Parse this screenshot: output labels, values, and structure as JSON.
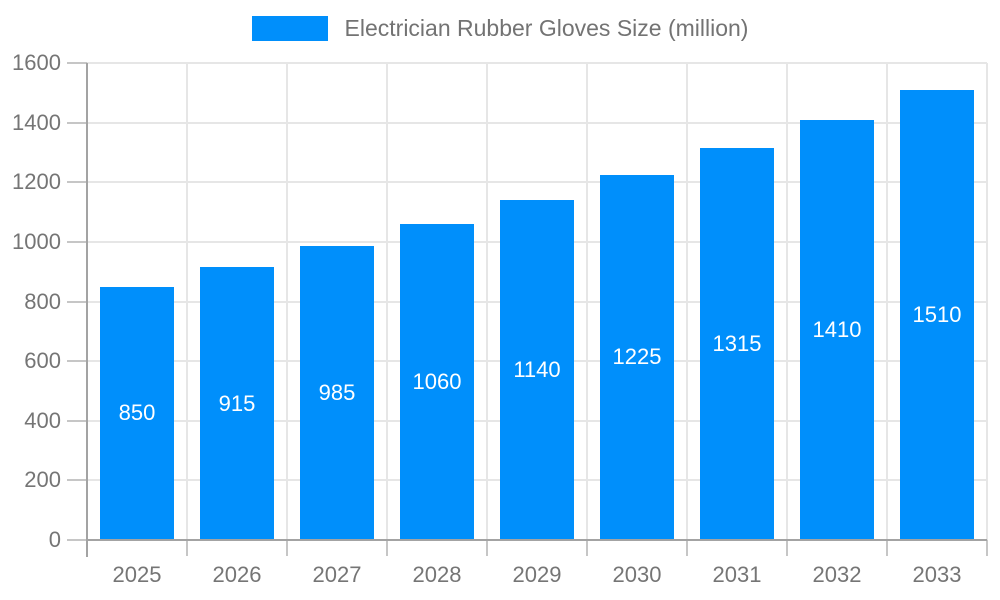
{
  "chart_data": {
    "type": "bar",
    "legend": "Electrician Rubber Gloves Size (million)",
    "legend_position": "top",
    "categories": [
      "2025",
      "2026",
      "2027",
      "2028",
      "2029",
      "2030",
      "2031",
      "2032",
      "2033"
    ],
    "values": [
      850,
      915,
      985,
      1060,
      1140,
      1225,
      1315,
      1410,
      1510
    ],
    "ylim": [
      0,
      1600
    ],
    "ytick_step": 200,
    "ytick_labels": [
      "0",
      "200",
      "400",
      "600",
      "800",
      "1000",
      "1200",
      "1400",
      "1600"
    ],
    "grid": true,
    "colors": {
      "bar": "#008FFB",
      "bar_label": "#ffffff",
      "axis_label": "#757575",
      "legend_text": "#737373",
      "grid_line": "#e6e6e6",
      "axis_line": "#a3a3a3",
      "tick_mark": "#c6c6c6",
      "background": "#ffffff"
    }
  }
}
